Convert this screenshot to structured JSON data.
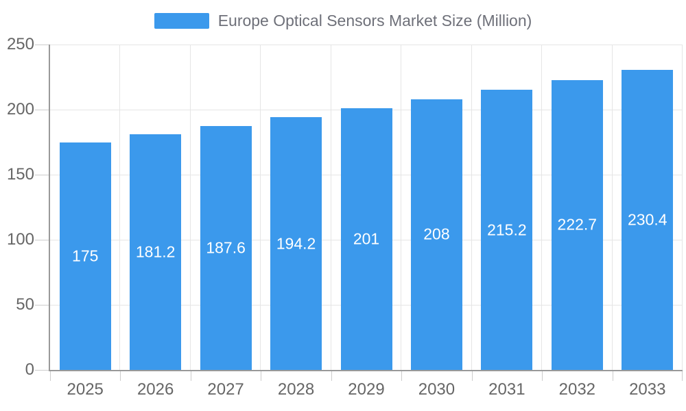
{
  "legend": {
    "label": "Europe Optical Sensors Market Size (Million)"
  },
  "chart_data": {
    "type": "bar",
    "title": "Europe Optical Sensors Market Size (Million)",
    "series_name": "Europe Optical Sensors Market Size (Million)",
    "categories": [
      "2025",
      "2026",
      "2027",
      "2028",
      "2029",
      "2030",
      "2031",
      "2032",
      "2033"
    ],
    "values": [
      175,
      181.2,
      187.6,
      194.2,
      201,
      208,
      215.2,
      222.7,
      230.4
    ],
    "value_labels": [
      "175",
      "181.2",
      "187.6",
      "194.2",
      "201",
      "208",
      "215.2",
      "222.7",
      "230.4"
    ],
    "xlabel": "",
    "ylabel": "",
    "ylim": [
      0,
      250
    ],
    "yticks": [
      0,
      50,
      100,
      150,
      200,
      250
    ],
    "grid": true,
    "legend_position": "top"
  },
  "colors": {
    "bar": "#3B99EC",
    "bar_label": "#FFFFFF",
    "gridline": "#E5E5E5",
    "tick": "#CCCCCC",
    "axis_line": "#999999",
    "axis_label": "#666666",
    "legend_text": "#6E7079"
  }
}
